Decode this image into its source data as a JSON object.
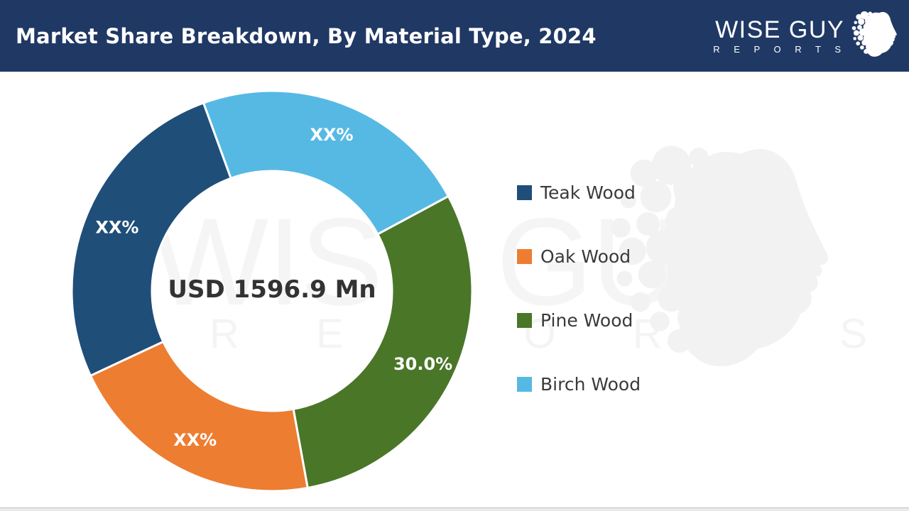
{
  "header": {
    "title": "Market Share Breakdown, By Material Type, 2024",
    "bg_color": "#203864",
    "logo": {
      "name": "WISE GUY",
      "sub": "R E P O R T S"
    }
  },
  "chart_data": {
    "type": "pie",
    "title": "Market Share Breakdown, By Material Type, 2024",
    "donut": true,
    "center_label": "USD 1596.9 Mn",
    "start_angle": 110,
    "counterclockwise": true,
    "legend_position": "right",
    "categories": [
      "Teak Wood",
      "Oak Wood",
      "Pine Wood",
      "Birch Wood"
    ],
    "values": [
      26.4,
      20.9,
      30.0,
      22.7
    ],
    "displayed_labels": [
      "XX%",
      "XX%",
      "30.0%",
      "XX%"
    ],
    "colors": [
      "#1f4e79",
      "#ed7d31",
      "#4a7628",
      "#56b9e4"
    ]
  },
  "legend": {
    "items": [
      {
        "label": "Teak Wood",
        "color": "#1f4e79"
      },
      {
        "label": "Oak Wood",
        "color": "#ed7d31"
      },
      {
        "label": "Pine Wood",
        "color": "#4a7628"
      },
      {
        "label": "Birch Wood",
        "color": "#56b9e4"
      }
    ]
  },
  "watermark": {
    "line1": "WISE GUY",
    "line2": "R E P O R T S"
  }
}
